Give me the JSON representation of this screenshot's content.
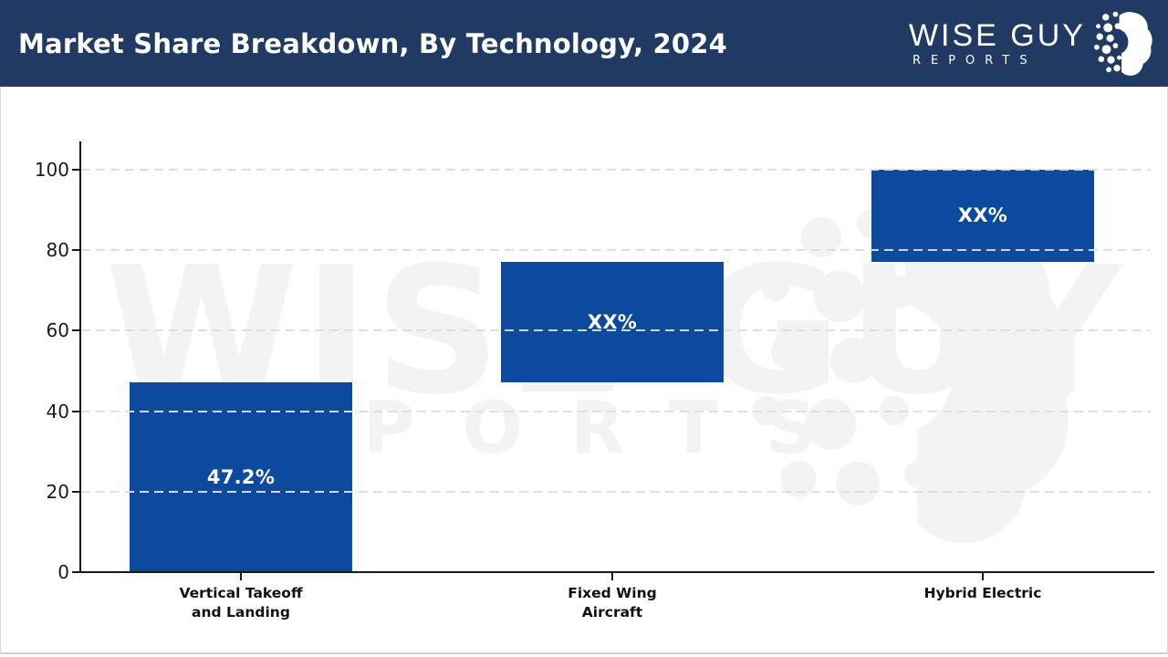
{
  "header": {
    "title": "Market Share Breakdown, By Technology, 2024",
    "background_color": "#213a64",
    "logo": {
      "line1": "WISE GUY",
      "line2": "REPORTS"
    }
  },
  "watermark": {
    "line1": "WISE GUY",
    "line2": "REPORTS"
  },
  "chart_data": {
    "type": "bar",
    "subtype": "waterfall",
    "title": "Market Share Breakdown, By Technology, 2024",
    "xlabel": "",
    "ylabel": "",
    "ylim": [
      0,
      100
    ],
    "yticks": [
      0,
      20,
      40,
      60,
      80,
      100
    ],
    "grid": "dashed horizontal, drawn over bars",
    "legend": "none",
    "bar_color": "#0c4a9e",
    "bar_label_color": "#ffffff",
    "categories": [
      "Vertical Takeoff and Landing",
      "Fixed Wing Aircraft",
      "Hybrid Electric"
    ],
    "category_label_lines": [
      [
        "Vertical Takeoff",
        "and Landing"
      ],
      [
        "Fixed Wing",
        "Aircraft"
      ],
      [
        "Hybrid Electric"
      ]
    ],
    "segments": [
      {
        "category": "Vertical Takeoff and Landing",
        "start": 0,
        "end": 47.2,
        "label": "47.2%"
      },
      {
        "category": "Fixed Wing Aircraft",
        "start": 47.2,
        "end": 77.2,
        "label": "XX%"
      },
      {
        "category": "Hybrid Electric",
        "start": 77.2,
        "end": 100,
        "label": "XX%"
      }
    ]
  }
}
